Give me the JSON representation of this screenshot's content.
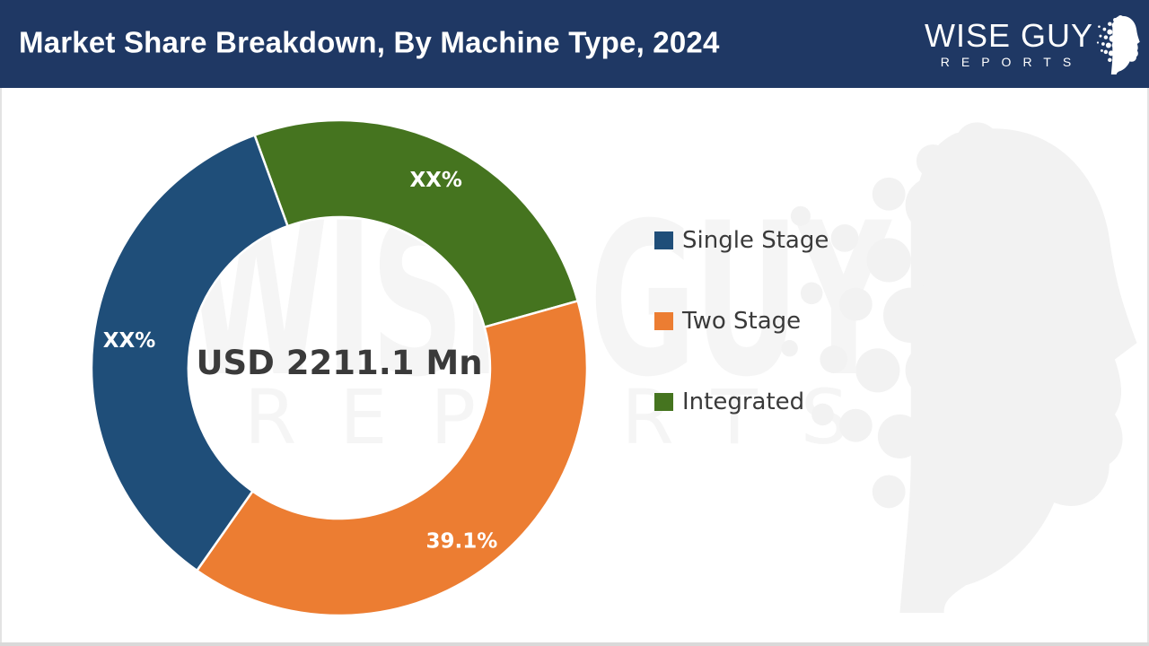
{
  "header": {
    "title": "Market Share Breakdown, By Machine Type, 2024",
    "logo": {
      "line1": "WISE GUY",
      "line2": "REPORTS"
    }
  },
  "watermark": {
    "line1": "WISE GUY",
    "line2": "REPORTS"
  },
  "chart_data": {
    "type": "pie",
    "donut": true,
    "title": "Market Share Breakdown, By Machine Type, 2024",
    "center_label": "USD 2211.1 Mn",
    "start_angle_deg_clockwise_from_top": -20,
    "slices": [
      {
        "name": "Integrated",
        "display_label": "XX%",
        "value_pct": 26.2,
        "color": "#45741f"
      },
      {
        "name": "Two Stage",
        "display_label": "39.1%",
        "value_pct": 39.1,
        "color": "#ec7d32"
      },
      {
        "name": "Single Stage",
        "display_label": "XX%",
        "value_pct": 34.7,
        "color": "#1f4e79"
      }
    ],
    "legend": {
      "position": "right",
      "items": [
        {
          "label": "Single Stage",
          "color": "#1f4e79"
        },
        {
          "label": "Two Stage",
          "color": "#ec7d32"
        },
        {
          "label": "Integrated",
          "color": "#45741f"
        }
      ]
    },
    "colors": {
      "header_bg": "#1f3864",
      "slice_label_text": "#ffffff",
      "center_text": "#3a3a3a",
      "legend_text": "#3a3a3a",
      "watermark": "#f5f5f5"
    }
  }
}
